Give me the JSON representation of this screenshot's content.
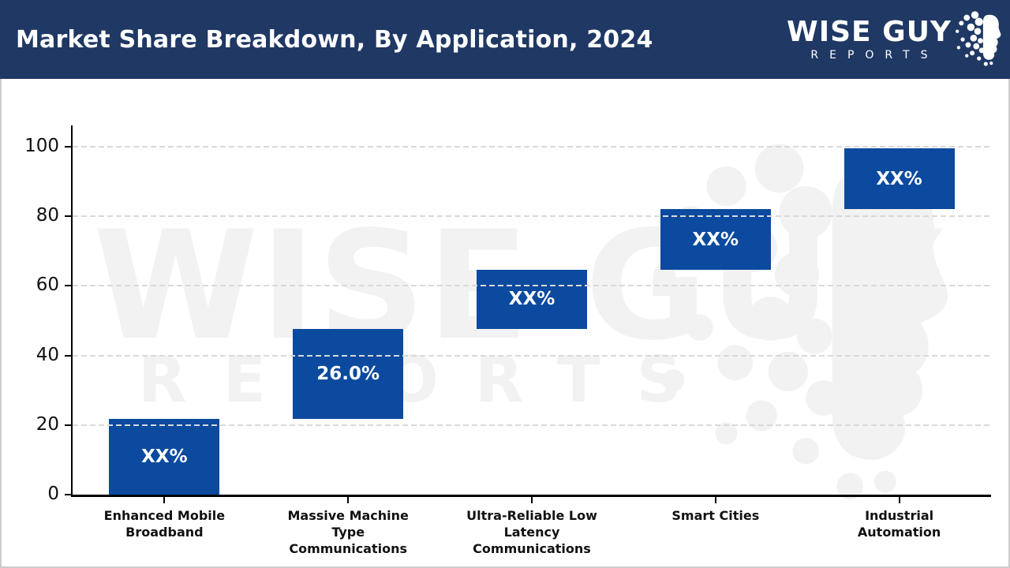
{
  "header": {
    "title": "Market Share Breakdown, By Application, 2024",
    "bg_color": "#1f3864",
    "logo": {
      "brand": "WISE GUY",
      "sub": "REPORTS"
    }
  },
  "watermark": {
    "brand": "WISE GUY",
    "sub": "REPORTS"
  },
  "chart_data": {
    "type": "bar",
    "subtype": "floating-segment-waterfall",
    "title": "Market Share Breakdown, By Application, 2024",
    "categories": [
      "Enhanced Mobile\nBroadband",
      "Massive Machine\nType\nCommunications",
      "Ultra-Reliable Low\nLatency\nCommunications",
      "Smart Cities",
      "Industrial\nAutomation"
    ],
    "segments": [
      {
        "category": "Enhanced Mobile Broadband",
        "start": 0,
        "end": 21.7,
        "label": "XX%"
      },
      {
        "category": "Massive Machine Type Communications",
        "start": 21.7,
        "end": 47.7,
        "label": "26.0%"
      },
      {
        "category": "Ultra-Reliable Low Latency Communications",
        "start": 47.7,
        "end": 64.6,
        "label": "XX%"
      },
      {
        "category": "Smart Cities",
        "start": 64.6,
        "end": 82.0,
        "label": "XX%"
      },
      {
        "category": "Industrial Automation",
        "start": 82.0,
        "end": 99.5,
        "label": "XX%"
      }
    ],
    "xlabel": "",
    "ylabel": "",
    "yticks": [
      0,
      20,
      40,
      60,
      80,
      100
    ],
    "ylim": [
      0,
      105.8
    ],
    "grid": "horizontal-dashed",
    "legend": "none",
    "bar_color": "#0b4a9e",
    "bar_label_color": "#ffffff",
    "axis_color": "#000000",
    "grid_color": "#d9d9d9"
  }
}
